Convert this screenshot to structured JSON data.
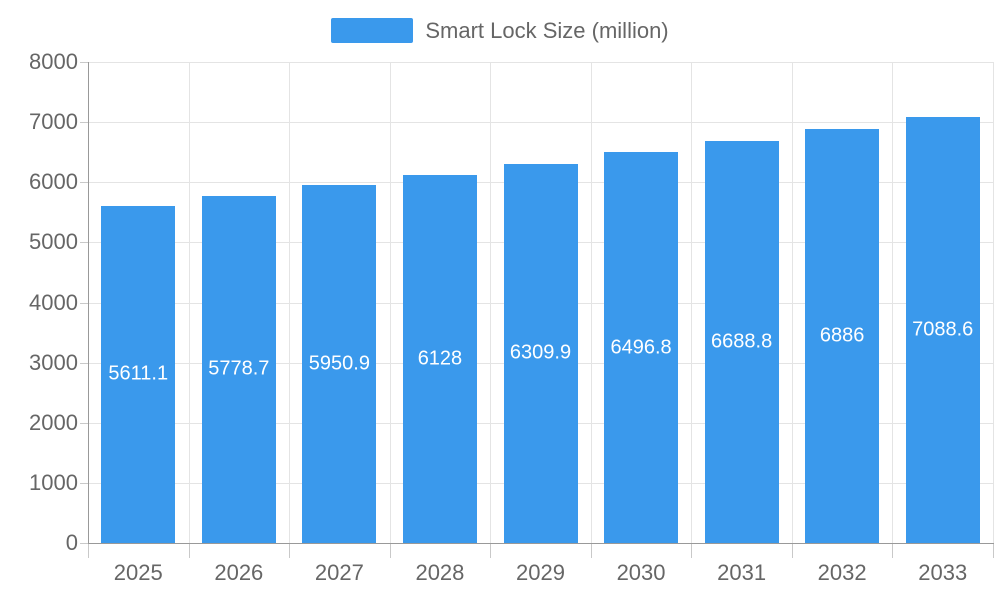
{
  "chart_data": {
    "type": "bar",
    "title": "",
    "legend": "Smart Lock Size (million)",
    "categories": [
      "2025",
      "2026",
      "2027",
      "2028",
      "2029",
      "2030",
      "2031",
      "2032",
      "2033"
    ],
    "series": [
      {
        "name": "Smart Lock Size (million)",
        "values": [
          5611.1,
          5778.7,
          5950.9,
          6128,
          6309.9,
          6496.8,
          6688.8,
          6886,
          7088.6
        ],
        "labels": [
          "5611.1",
          "5778.7",
          "5950.9",
          "6128",
          "6309.9",
          "6496.8",
          "6688.8",
          "6886",
          "7088.6"
        ]
      }
    ],
    "xlabel": "",
    "ylabel": "",
    "ylim": [
      0,
      8000
    ],
    "ytick_step": 1000,
    "yticks": [
      "0",
      "1000",
      "2000",
      "3000",
      "4000",
      "5000",
      "6000",
      "7000",
      "8000"
    ],
    "grid": true,
    "legend_position": "top",
    "bar_label_position": "inside-center",
    "colors": {
      "bar": "#3a99ec",
      "bar_label": "#ffffff",
      "axis_line": "#999999",
      "tick": "#c9c9c9",
      "gridline": "#e4e4e4",
      "axis_text": "#666666",
      "legend_text": "#666666",
      "background": "#ffffff"
    }
  }
}
